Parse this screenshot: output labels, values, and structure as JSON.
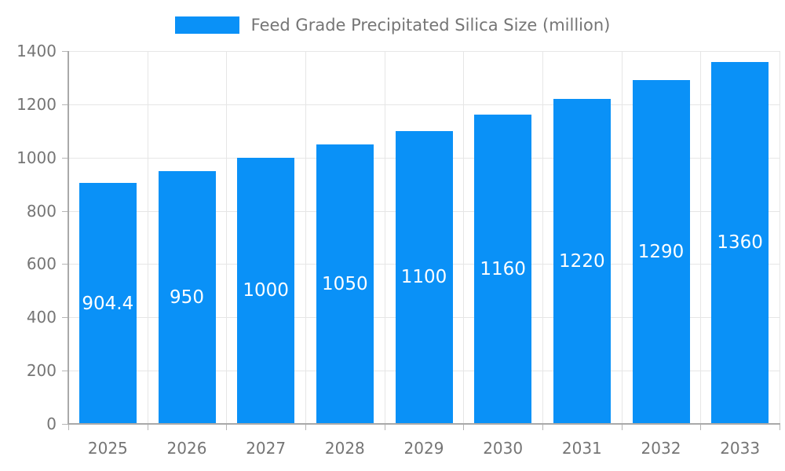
{
  "chart_data": {
    "type": "bar",
    "title": "",
    "legend_label": "Feed Grade Precipitated Silica Size (million)",
    "categories": [
      "2025",
      "2026",
      "2027",
      "2028",
      "2029",
      "2030",
      "2031",
      "2032",
      "2033"
    ],
    "series": [
      {
        "name": "Feed Grade Precipitated Silica Size (million)",
        "values": [
          904.4,
          950,
          1000,
          1050,
          1100,
          1160,
          1220,
          1290,
          1360
        ],
        "value_labels": [
          "904.4",
          "950",
          "1000",
          "1050",
          "1100",
          "1160",
          "1220",
          "1290",
          "1360"
        ]
      }
    ],
    "xlabel": "",
    "ylabel": "",
    "ylim": [
      0,
      1400
    ],
    "yticks": [
      0,
      200,
      400,
      600,
      800,
      1000,
      1200,
      1400
    ],
    "grid": true,
    "legend_position": "top-center",
    "colors": {
      "bar": "#0a91f7",
      "grid": "#e6e6e6",
      "axis": "#a9a9a9",
      "tick": "#b5b5b5",
      "axis_label_text": "#757575",
      "legend_text": "#757575",
      "value_label_text": "#ffffff",
      "background": "#ffffff"
    }
  }
}
